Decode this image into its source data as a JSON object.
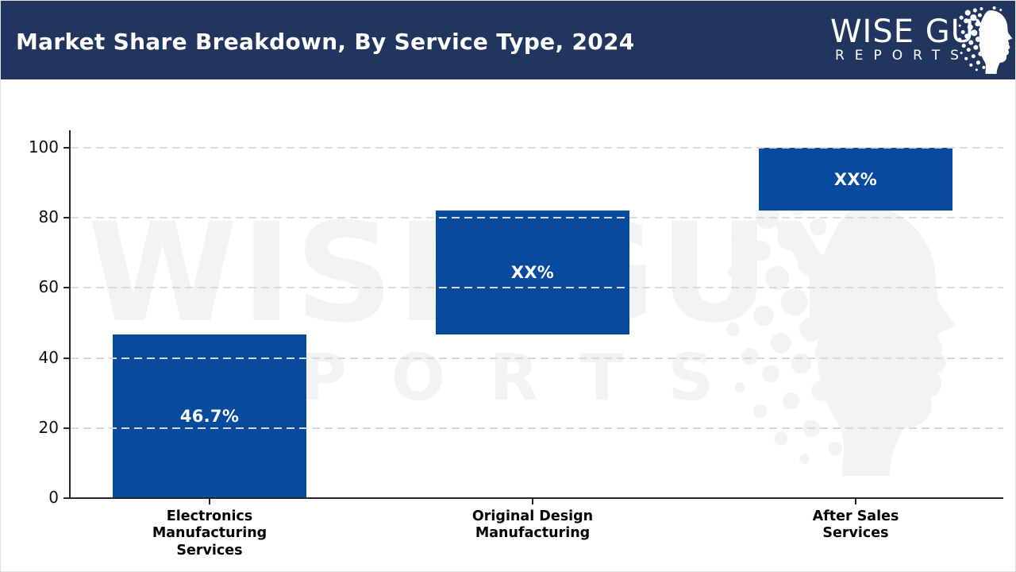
{
  "header": {
    "title": "Market Share Breakdown, By Service Type, 2024"
  },
  "brand": {
    "name": "WISE GUY",
    "sub": "REPORTS",
    "face_icon": "dotted-head-profile"
  },
  "watermark": {
    "line1": "WISE GUY",
    "line2": "REPORTS"
  },
  "colors": {
    "header_bg": "#21355f",
    "bar": "#084a9e",
    "bar_label": "#ffffff",
    "grid": "#d9d9d9",
    "axis": "#262626",
    "tick_label": "#111111",
    "watermark": "#f2f3f5"
  },
  "chart_data": {
    "type": "bar",
    "subtype": "floating-segment-waterfall",
    "title": "Market Share Breakdown, By Service Type, 2024",
    "categories": [
      "Electronics Manufacturing Services",
      "Original Design Manufacturing",
      "After Sales Services"
    ],
    "category_lines": [
      [
        "Electronics",
        "Manufacturing",
        "Services"
      ],
      [
        "Original Design",
        "Manufacturing"
      ],
      [
        "After Sales",
        "Services"
      ]
    ],
    "segments": [
      {
        "category": "Electronics Manufacturing Services",
        "start": 0,
        "end": 46.7,
        "label": "46.7%"
      },
      {
        "category": "Original Design Manufacturing",
        "start": 46.7,
        "end": 82.1,
        "label": "XX%"
      },
      {
        "category": "After Sales Services",
        "start": 82.1,
        "end": 100,
        "label": "XX%"
      }
    ],
    "ylim": [
      0,
      100
    ],
    "yticks": [
      0,
      20,
      40,
      60,
      80,
      100
    ],
    "xlabel": "",
    "ylabel": "",
    "grid": {
      "axis": "y",
      "style": "dashed",
      "on": true
    },
    "legend": null
  }
}
